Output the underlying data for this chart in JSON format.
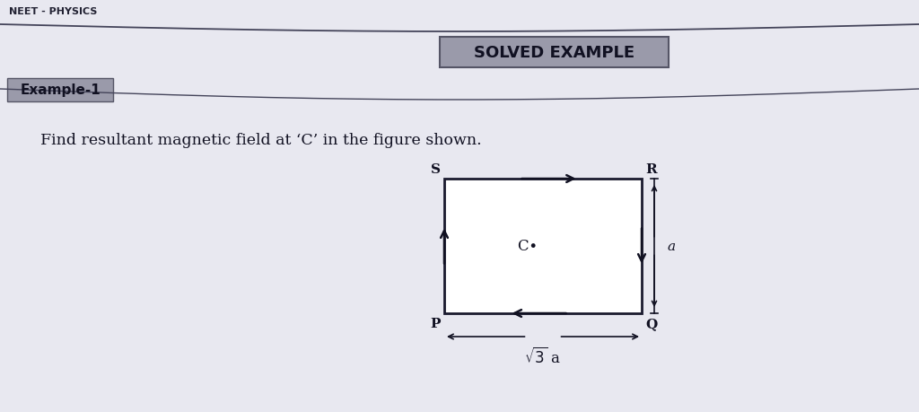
{
  "bg_color": "#e8e8f0",
  "title_text": "SOLVED EXAMPLE",
  "title_box_color": "#9a9aaa",
  "example_label": "Example-1",
  "example_box_color": "#9a9aaa",
  "question_text": "Find resultant magnetic field at ‘C’ in the figure shown.",
  "neet_label": "NEET - PHYSICS",
  "rect_color": "#f0f0f8",
  "rect_edge_color": "#1a1a2e",
  "side_label_a": "a",
  "bottom_label": "$\\sqrt{3}$ a",
  "text_color": "#1a1a2e"
}
